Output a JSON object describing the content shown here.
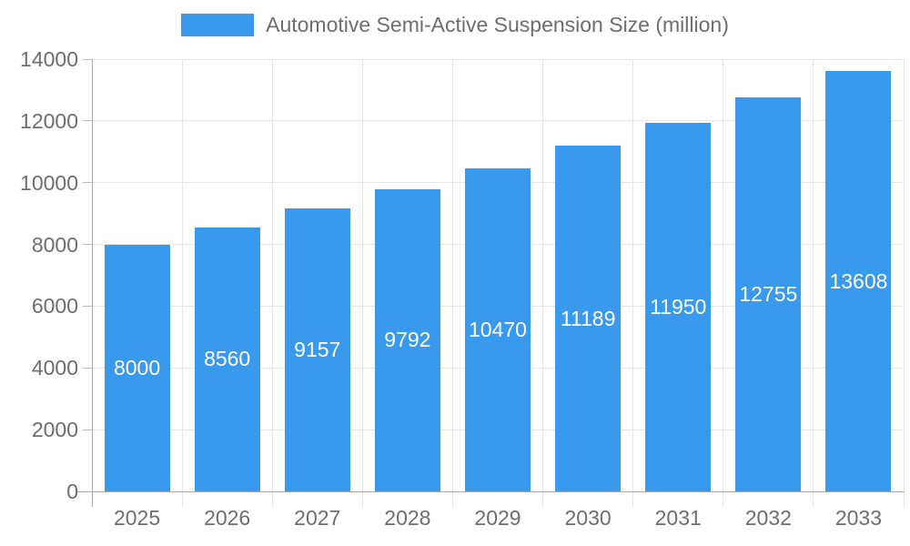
{
  "legend": {
    "label": "Automotive Semi-Active Suspension Size (million)",
    "swatch_color": "#3999EC"
  },
  "chart_data": {
    "type": "bar",
    "title": "Automotive Semi-Active Suspension Size (million)",
    "categories": [
      "2025",
      "2026",
      "2027",
      "2028",
      "2029",
      "2030",
      "2031",
      "2032",
      "2033"
    ],
    "values": [
      8000,
      8560,
      9157,
      9792,
      10470,
      11189,
      11950,
      12755,
      13608
    ],
    "series": [
      {
        "name": "Automotive Semi-Active Suspension Size (million)",
        "values": [
          8000,
          8560,
          9157,
          9792,
          10470,
          11189,
          11950,
          12755,
          13608
        ]
      }
    ],
    "xlabel": "",
    "ylabel": "",
    "ylim": [
      0,
      14000
    ],
    "yticks": [
      0,
      2000,
      4000,
      6000,
      8000,
      10000,
      12000,
      14000
    ],
    "grid": true,
    "legend_position": "top-center",
    "bar_label_position": "inside-center",
    "colors": {
      "bar_fill": "#3999EC",
      "bar_label": "#ffffff",
      "grid_line": "#e6e6e6",
      "axis_line": "#aaaaaa",
      "tick_label": "#6e6e6e"
    }
  }
}
